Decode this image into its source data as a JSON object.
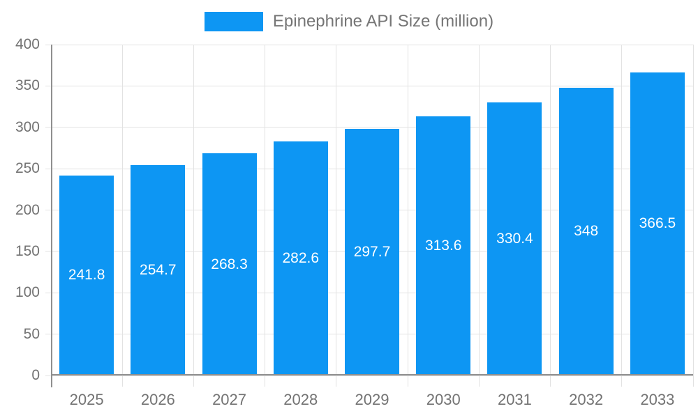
{
  "chart_data": {
    "type": "bar",
    "title": "Epinephrine API Size (million)",
    "legend": [
      "Epinephrine API Size (million)"
    ],
    "legend_position": "top",
    "categories": [
      "2025",
      "2026",
      "2027",
      "2028",
      "2029",
      "2030",
      "2031",
      "2032",
      "2033"
    ],
    "values": [
      241.8,
      254.7,
      268.3,
      282.6,
      297.7,
      313.6,
      330.4,
      348,
      366.5
    ],
    "value_labels": [
      "241.8",
      "254.7",
      "268.3",
      "282.6",
      "297.7",
      "313.6",
      "330.4",
      "348",
      "366.5"
    ],
    "xlabel": "",
    "ylabel": "",
    "ylim": [
      0,
      400
    ],
    "yticks": [
      0,
      50,
      100,
      150,
      200,
      250,
      300,
      350,
      400
    ],
    "grid": true,
    "colors": {
      "bar": "#0d96f3",
      "value_label_text": "#ffffff",
      "axis_text": "#737373",
      "legend_text": "#757575",
      "grid_line": "#e2e2e2",
      "axis_line": "#8f8f8f",
      "background": "#ffffff"
    }
  }
}
